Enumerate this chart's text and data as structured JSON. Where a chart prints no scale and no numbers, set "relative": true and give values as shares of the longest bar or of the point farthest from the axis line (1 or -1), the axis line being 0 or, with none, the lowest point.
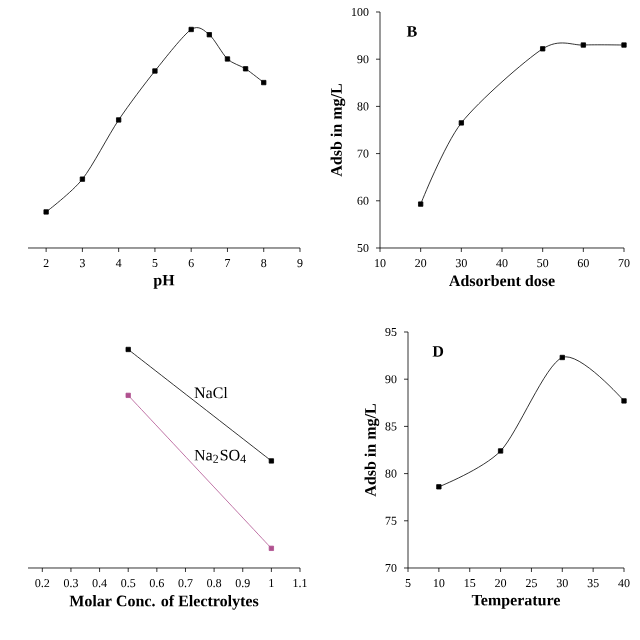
{
  "chart_data": [
    {
      "type": "line",
      "xlabel": "pH",
      "relative": true,
      "x": [
        2,
        3,
        4,
        5,
        6,
        6.5,
        7,
        7.5,
        8
      ],
      "values": [
        0.165,
        0.315,
        0.586,
        0.81,
        1,
        0.976,
        0.865,
        0.82,
        0.757
      ],
      "color": "#000000",
      "xlim": [
        1.5,
        9
      ],
      "xticks": [
        2,
        3,
        4,
        5,
        6,
        7,
        8,
        9
      ],
      "tick_labels": "x",
      "marker": "square"
    },
    {
      "type": "line",
      "xlabel": "Adsorbent dose",
      "ylabel": "Adsb in mg/L",
      "annotations": [
        "B"
      ],
      "x": [
        20,
        30,
        50,
        60,
        70
      ],
      "values": [
        59.3,
        76.5,
        92.2,
        93,
        93
      ],
      "color": "#000000",
      "xlim": [
        10,
        70
      ],
      "xticks": [
        10,
        20,
        30,
        40,
        50,
        60,
        70
      ],
      "ylim": [
        50,
        100
      ],
      "yticks": [
        50,
        60,
        70,
        80,
        90,
        100
      ],
      "marker": "square"
    },
    {
      "type": "line",
      "xlabel": "Molar Conc. of Electrolytes",
      "relative": true,
      "x": [
        0.5,
        1
      ],
      "series": [
        {
          "name": "NaCl",
          "color": "#000000",
          "values": [
            1,
            0.49
          ]
        },
        {
          "name": "Na$_{2}$SO$_{4}$",
          "color": "#b0508f",
          "values": [
            0.79,
            0.09
          ]
        }
      ],
      "xlim": [
        0.15,
        1.1
      ],
      "xticks": [
        0.2,
        0.3,
        0.4,
        0.5,
        0.6,
        0.7,
        0.8,
        0.9,
        1,
        1.1
      ],
      "tick_labels": "x",
      "marker": "square"
    },
    {
      "type": "line",
      "xlabel": "Temperature",
      "ylabel": "Adsb in mg/L",
      "annotations": [
        "D"
      ],
      "x": [
        10,
        20,
        30,
        40
      ],
      "values": [
        78.6,
        82.4,
        92.3,
        87.7
      ],
      "color": "#000000",
      "xlim": [
        5,
        40
      ],
      "xticks": [
        5,
        10,
        15,
        20,
        25,
        30,
        35,
        40
      ],
      "ylim": [
        70,
        95
      ],
      "yticks": [
        70,
        75,
        80,
        85,
        90,
        95
      ],
      "marker": "square"
    }
  ]
}
